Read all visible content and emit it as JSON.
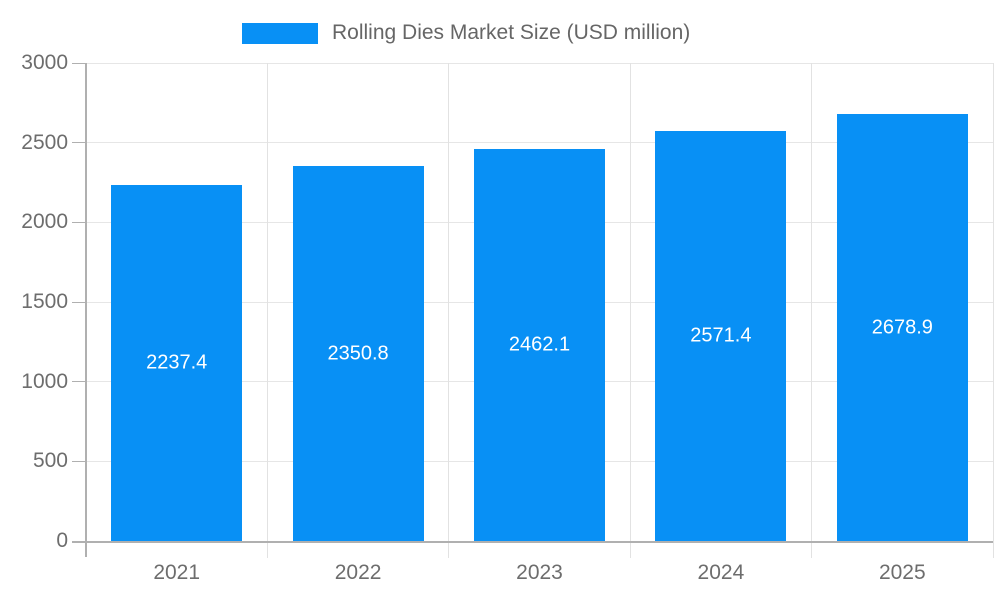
{
  "chart_data": {
    "type": "bar",
    "title": "Rolling Dies Market Size (USD million)",
    "categories": [
      "2021",
      "2022",
      "2023",
      "2024",
      "2025"
    ],
    "values": [
      2237.4,
      2350.8,
      2462.1,
      2571.4,
      2678.9
    ],
    "value_labels": [
      "2237.4",
      "2350.8",
      "2462.1",
      "2571.4",
      "2678.9"
    ],
    "ylim": [
      0,
      3000
    ],
    "yticks": [
      0,
      500,
      1000,
      1500,
      2000,
      2500,
      3000
    ],
    "grid": true,
    "legend_position": "top-center",
    "bar_color": "#0890F5",
    "bar_label_color": "#ffffff",
    "axis_text_color": "#6d6d6d",
    "legend_text_color": "#666666"
  }
}
